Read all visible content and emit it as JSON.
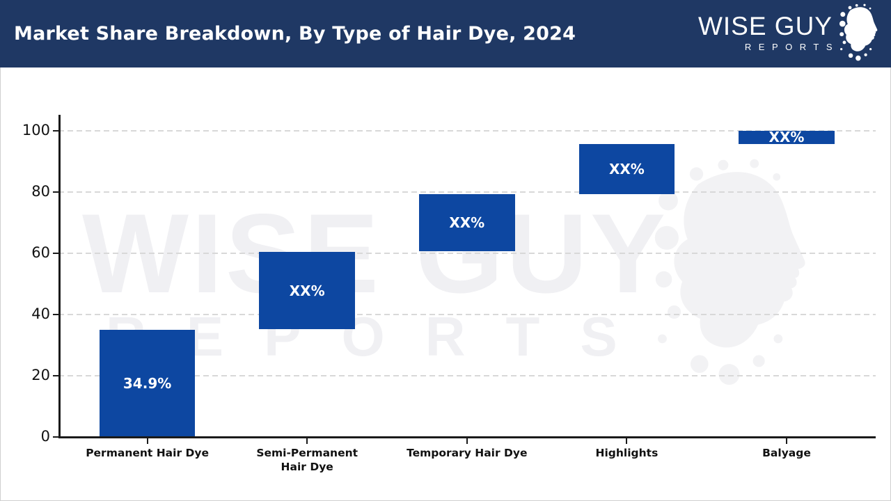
{
  "header": {
    "title": "Market Share Breakdown, By Type of Hair Dye, 2024",
    "logo": {
      "line1": "WISE GUY",
      "line2": "REPORTS"
    }
  },
  "watermark": {
    "line1": "WISE GUY",
    "line2": "REPORTS"
  },
  "colors": {
    "header_bg": "#1F3864",
    "bar": "#0D47A1",
    "bar_label": "#FFFFFF",
    "gridline": "#D8D8D8",
    "axis": "#1A1A1A",
    "watermark": "#F0F0F3"
  },
  "chart_data": {
    "type": "bar",
    "variant": "floating-waterfall",
    "title": "Market Share Breakdown, By Type of Hair Dye, 2024",
    "categories": [
      "Permanent Hair Dye",
      "Semi-Permanent\nHair Dye",
      "Temporary Hair Dye",
      "Highlights",
      "Balyage"
    ],
    "series": [
      {
        "name": "Market share (%)",
        "segments": [
          {
            "start": 0,
            "end": 34.9,
            "label": "34.9%"
          },
          {
            "start": 35.0,
            "end": 60.4,
            "label": "XX%"
          },
          {
            "start": 60.6,
            "end": 79.2,
            "label": "XX%"
          },
          {
            "start": 79.3,
            "end": 95.5,
            "label": "XX%"
          },
          {
            "start": 95.5,
            "end": 100,
            "label": "XX%"
          }
        ]
      }
    ],
    "xlabel": "",
    "ylabel": "",
    "ylim": [
      0,
      100
    ],
    "yticks": [
      0,
      20,
      40,
      60,
      80,
      100
    ],
    "grid": {
      "horizontal": true,
      "style": "dashed"
    },
    "legend": "none"
  }
}
